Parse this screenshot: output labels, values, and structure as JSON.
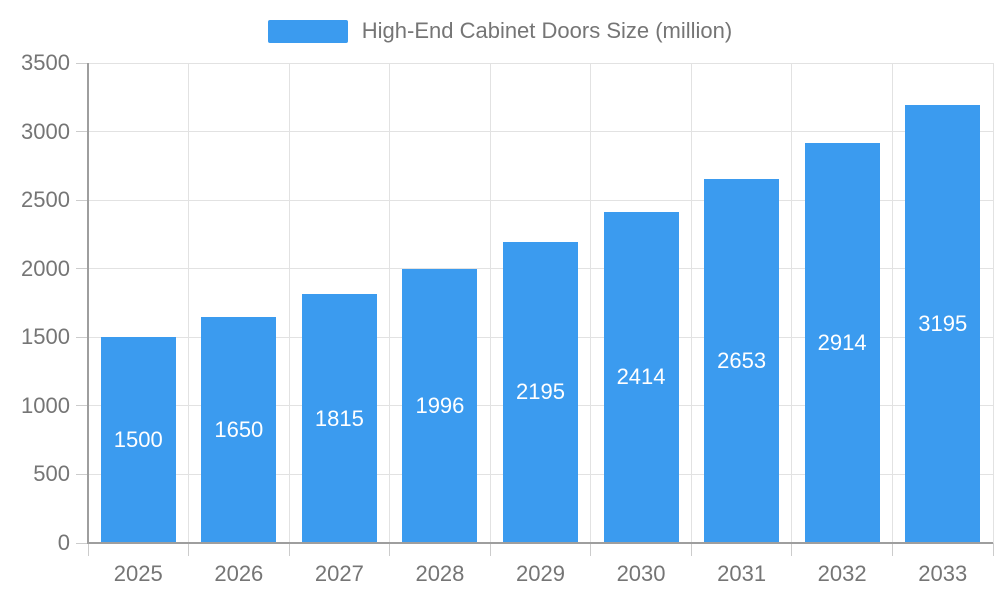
{
  "chart_data": {
    "type": "bar",
    "title": "High-End Cabinet Doors Size (million)",
    "legend": [
      "High-End Cabinet Doors Size (million)"
    ],
    "legend_position": "top-center",
    "categories": [
      "2025",
      "2026",
      "2027",
      "2028",
      "2029",
      "2030",
      "2031",
      "2032",
      "2033"
    ],
    "series": [
      {
        "name": "High-End Cabinet Doors Size (million)",
        "values": [
          1500,
          1650,
          1815,
          1996,
          2195,
          2414,
          2653,
          2914,
          3195
        ]
      }
    ],
    "xlabel": "",
    "ylabel": "",
    "ylim": [
      0,
      3500
    ],
    "yticks": [
      0,
      500,
      1000,
      1500,
      2000,
      2500,
      3000,
      3500
    ],
    "grid": true,
    "value_label_position": "inside-center",
    "colors": {
      "bar": "#3B9BEF",
      "grid_line": "#E2E2E2",
      "axis_line": "#9E9E9E",
      "tick_line": "#CCCCCC",
      "tick_text": "#757575",
      "legend_text": "#757575",
      "value_label_text": "#FFFFFF",
      "background": "#FFFFFF"
    }
  }
}
